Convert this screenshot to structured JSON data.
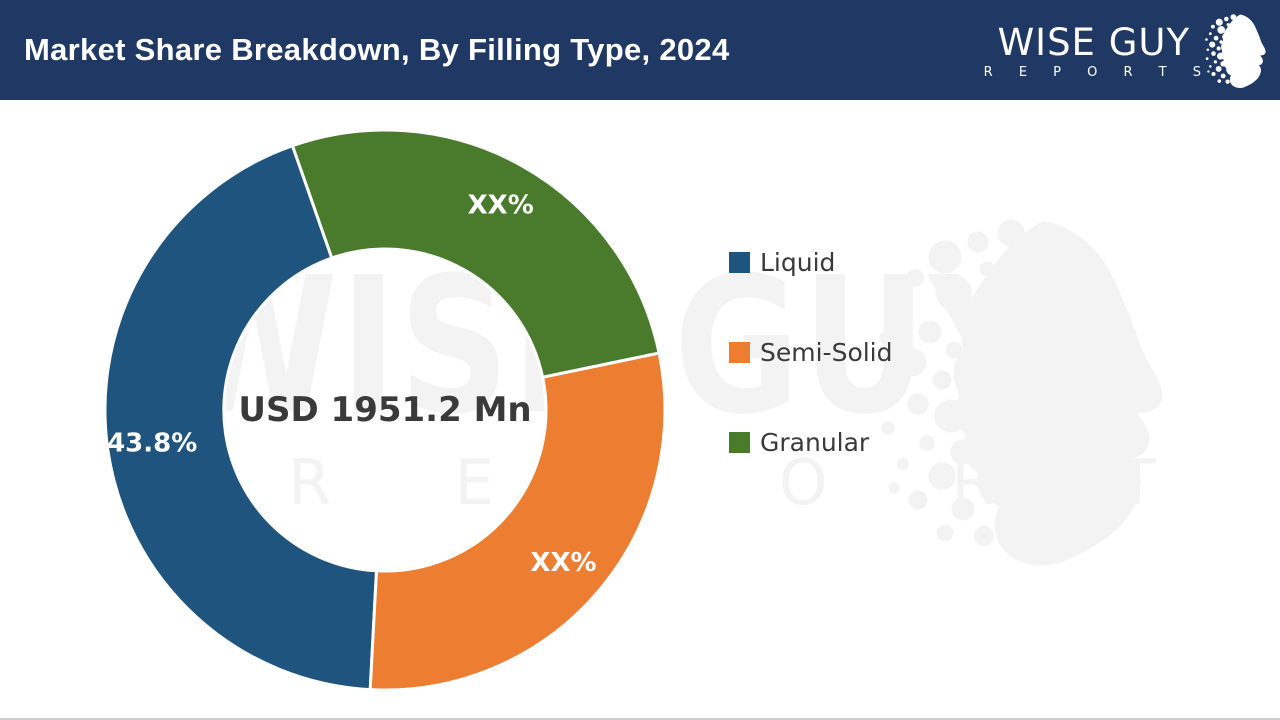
{
  "header": {
    "title": "Market Share Breakdown, By Filling Type, 2024",
    "bg_color": "#1f3864",
    "logo": {
      "line1": "WISE GUY",
      "line2": "R E P O R T S"
    }
  },
  "chart_data": {
    "type": "pie",
    "subtype": "donut",
    "title": "Market Share Breakdown, By Filling Type, 2024",
    "center_label": "USD 1951.2 Mn",
    "start_angle_deg": 109.3,
    "direction": "counterclockwise",
    "inner_radius_ratio": 0.575,
    "label_radius_ratio": 0.84,
    "legend_position": "right",
    "slices": [
      {
        "label": "Liquid",
        "display_value": "43.8%",
        "share_pct": 43.8,
        "color": "#1f547e"
      },
      {
        "label": "Semi-Solid",
        "display_value": "XX%",
        "share_pct": 29.1,
        "color": "#ed7d31"
      },
      {
        "label": "Granular",
        "display_value": "XX%",
        "share_pct": 27.1,
        "color": "#4a7a2b"
      }
    ]
  },
  "watermark": {
    "line1": "WISE GUY",
    "line2": "R E P O R T S"
  },
  "colors": {
    "header_bg": "#1f3864",
    "center_text": "#3a3a3a",
    "legend_text": "#3a3a3a",
    "slice_label_text": "#ffffff",
    "watermark": "#f3f3f4"
  }
}
